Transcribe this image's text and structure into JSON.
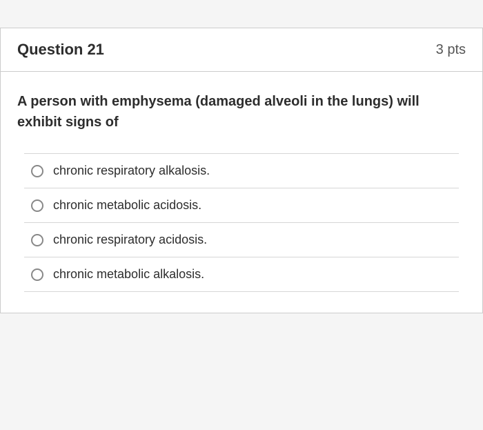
{
  "question": {
    "title": "Question 21",
    "points": "3 pts",
    "text": "A person with emphysema (damaged alveoli in the lungs) will exhibit signs of",
    "answers": [
      "chronic respiratory alkalosis.",
      "chronic metabolic acidosis.",
      "chronic respiratory acidosis.",
      "chronic metabolic alkalosis."
    ]
  },
  "styles": {
    "background_color": "#f5f5f5",
    "card_background": "#ffffff",
    "border_color": "#cccccc",
    "divider_color": "#d6d6d6",
    "title_color": "#2d2d2d",
    "points_color": "#555555",
    "text_color": "#2d2d2d",
    "radio_border": "#888888",
    "title_fontsize": 22,
    "points_fontsize": 20,
    "text_fontsize": 20,
    "answer_fontsize": 18
  }
}
